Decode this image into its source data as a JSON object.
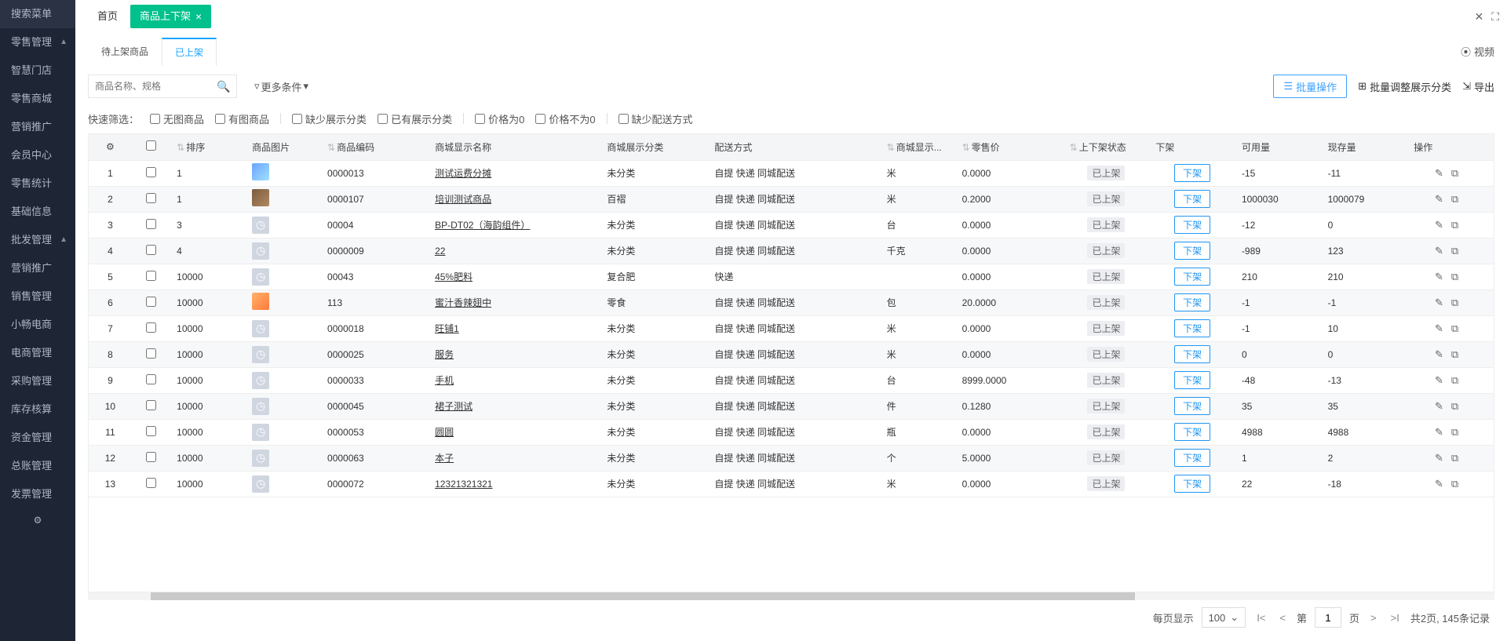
{
  "sidebar": {
    "items": [
      {
        "label": "搜索菜单",
        "arrow": ""
      },
      {
        "label": "零售管理",
        "arrow": "▲"
      },
      {
        "label": "智慧门店",
        "arrow": ""
      },
      {
        "label": "零售商城",
        "arrow": ""
      },
      {
        "label": "营销推广",
        "arrow": ""
      },
      {
        "label": "会员中心",
        "arrow": ""
      },
      {
        "label": "零售统计",
        "arrow": ""
      },
      {
        "label": "基础信息",
        "arrow": ""
      },
      {
        "label": "批发管理",
        "arrow": "▲"
      },
      {
        "label": "营销推广",
        "arrow": ""
      },
      {
        "label": "销售管理",
        "arrow": ""
      },
      {
        "label": "小畅电商",
        "arrow": ""
      },
      {
        "label": "电商管理",
        "arrow": ""
      },
      {
        "label": "采购管理",
        "arrow": ""
      },
      {
        "label": "库存核算",
        "arrow": ""
      },
      {
        "label": "资金管理",
        "arrow": ""
      },
      {
        "label": "总账管理",
        "arrow": ""
      },
      {
        "label": "发票管理",
        "arrow": ""
      }
    ],
    "gear": "⚙"
  },
  "tabs": {
    "home": "首页",
    "active": "商品上下架"
  },
  "subtabs": {
    "pending": "待上架商品",
    "listed": "已上架"
  },
  "video_link": "视频",
  "search": {
    "placeholder": "商品名称、规格"
  },
  "more_cond": "更多条件",
  "toolbar": {
    "batch": "批量操作",
    "batch_cat": "批量调整展示分类",
    "export": "导出"
  },
  "quickfilter_label": "快速筛选：",
  "quickfilters": [
    "无图商品",
    "有图商品",
    "缺少展示分类",
    "已有展示分类",
    "价格为0",
    "价格不为0",
    "缺少配送方式"
  ],
  "columns": [
    "",
    "",
    "排序",
    "商品图片",
    "商品编码",
    "商城显示名称",
    "商城展示分类",
    "配送方式",
    "商城显示...",
    "零售价",
    "上下架状态",
    "下架",
    "可用量",
    "现存量",
    "操作"
  ],
  "status_label": "已上架",
  "off_button": "下架",
  "rows": [
    {
      "idx": "1",
      "seq": "1",
      "img": "real1",
      "code": "0000013",
      "name": "测试运费分摊",
      "cat": "未分类",
      "deliver": "自提 快递 同城配送",
      "unit": "米",
      "price": "0.0000",
      "avail": "-15",
      "stock": "-11"
    },
    {
      "idx": "2",
      "seq": "1",
      "img": "real2",
      "code": "0000107",
      "name": "培训测试商品",
      "cat": "百褶",
      "deliver": "自提 快递 同城配送",
      "unit": "米",
      "price": "0.2000",
      "avail": "1000030",
      "stock": "1000079"
    },
    {
      "idx": "3",
      "seq": "3",
      "img": "none",
      "code": "00004",
      "name": "BP-DT02（海韵组件）",
      "cat": "未分类",
      "deliver": "自提 快递 同城配送",
      "unit": "台",
      "price": "0.0000",
      "avail": "-12",
      "stock": "0"
    },
    {
      "idx": "4",
      "seq": "4",
      "img": "none",
      "code": "0000009",
      "name": "22",
      "cat": "未分类",
      "deliver": "自提 快递 同城配送",
      "unit": "千克",
      "price": "0.0000",
      "avail": "-989",
      "stock": "123"
    },
    {
      "idx": "5",
      "seq": "10000",
      "img": "none",
      "code": "00043",
      "name": "45%肥料",
      "cat": "复合肥",
      "deliver": "快递",
      "unit": "",
      "price": "0.0000",
      "avail": "210",
      "stock": "210"
    },
    {
      "idx": "6",
      "seq": "10000",
      "img": "real6",
      "code": "113",
      "name": "蜜汁香辣翅中",
      "cat": "零食",
      "deliver": "自提 快递 同城配送",
      "unit": "包",
      "price": "20.0000",
      "avail": "-1",
      "stock": "-1"
    },
    {
      "idx": "7",
      "seq": "10000",
      "img": "none",
      "code": "0000018",
      "name": "旺铺1",
      "cat": "未分类",
      "deliver": "自提 快递 同城配送",
      "unit": "米",
      "price": "0.0000",
      "avail": "-1",
      "stock": "10"
    },
    {
      "idx": "8",
      "seq": "10000",
      "img": "none",
      "code": "0000025",
      "name": "服务",
      "cat": "未分类",
      "deliver": "自提 快递 同城配送",
      "unit": "米",
      "price": "0.0000",
      "avail": "0",
      "stock": "0"
    },
    {
      "idx": "9",
      "seq": "10000",
      "img": "none",
      "code": "0000033",
      "name": "手机",
      "cat": "未分类",
      "deliver": "自提 快递 同城配送",
      "unit": "台",
      "price": "8999.0000",
      "avail": "-48",
      "stock": "-13"
    },
    {
      "idx": "10",
      "seq": "10000",
      "img": "none",
      "code": "0000045",
      "name": "裙子测试",
      "cat": "未分类",
      "deliver": "自提 快递 同城配送",
      "unit": "件",
      "price": "0.1280",
      "avail": "35",
      "stock": "35"
    },
    {
      "idx": "11",
      "seq": "10000",
      "img": "none",
      "code": "0000053",
      "name": "圆圆",
      "cat": "未分类",
      "deliver": "自提 快递 同城配送",
      "unit": "瓶",
      "price": "0.0000",
      "avail": "4988",
      "stock": "4988"
    },
    {
      "idx": "12",
      "seq": "10000",
      "img": "none",
      "code": "0000063",
      "name": "本子",
      "cat": "未分类",
      "deliver": "自提 快递 同城配送",
      "unit": "个",
      "price": "5.0000",
      "avail": "1",
      "stock": "2"
    },
    {
      "idx": "13",
      "seq": "10000",
      "img": "none",
      "code": "0000072",
      "name": "12321321321",
      "cat": "未分类",
      "deliver": "自提 快递 同城配送",
      "unit": "米",
      "price": "0.0000",
      "avail": "22",
      "stock": "-18"
    }
  ],
  "pagination": {
    "perpage_label": "每页显示",
    "size": "100",
    "page_prefix": "第",
    "page": "1",
    "page_suffix": "页",
    "summary": "共2页, 145条记录"
  },
  "colors": {
    "primary": "#00c08b",
    "link": "#1aa4ff",
    "sidebar_bg": "#1e2636"
  }
}
